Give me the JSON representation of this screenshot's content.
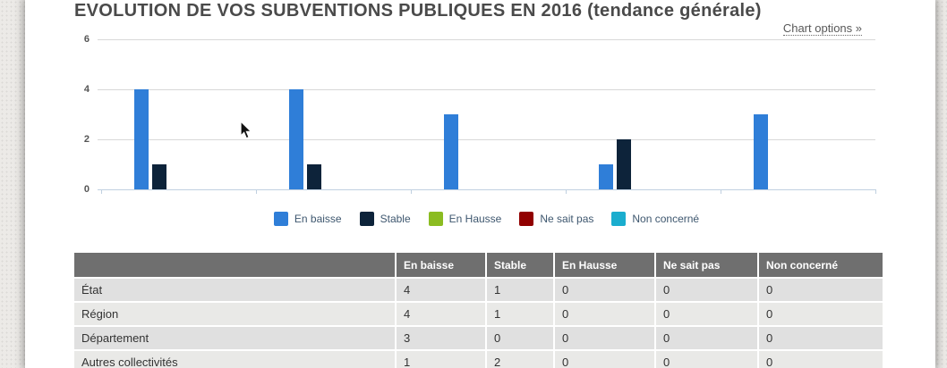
{
  "header": {
    "title": "EVOLUTION DE VOS SUBVENTIONS PUBLIQUES EN 2016 (tendance générale)",
    "chart_options_label": "Chart options »"
  },
  "chart_data": {
    "type": "bar",
    "title": "EVOLUTION DE VOS SUBVENTIONS PUBLIQUES EN 2016 (tendance générale)",
    "categories": [
      "État",
      "Région",
      "Département",
      "Autres collectivités",
      ""
    ],
    "series": [
      {
        "name": "En baisse",
        "color": "#2f7ed8",
        "values": [
          4,
          4,
          3,
          1,
          3
        ]
      },
      {
        "name": "Stable",
        "color": "#0d233a",
        "values": [
          1,
          1,
          0,
          2,
          0
        ]
      },
      {
        "name": "En Hausse",
        "color": "#8bbc21",
        "values": [
          0,
          0,
          0,
          0,
          0
        ]
      },
      {
        "name": "Ne sait pas",
        "color": "#910000",
        "values": [
          0,
          0,
          0,
          0,
          0
        ]
      },
      {
        "name": "Non concerné",
        "color": "#1aadce",
        "values": [
          0,
          0,
          0,
          0,
          0
        ]
      }
    ],
    "xlabel": "",
    "ylabel": "",
    "ylim": [
      0,
      6
    ],
    "yticks": [
      0,
      2,
      4,
      6
    ],
    "grid": true,
    "legend_position": "bottom"
  },
  "table": {
    "columns": [
      "",
      "En baisse",
      "Stable",
      "En Hausse",
      "Ne sait pas",
      "Non concerné"
    ],
    "rows": [
      {
        "label": "État",
        "values": [
          4,
          1,
          0,
          0,
          0
        ]
      },
      {
        "label": "Région",
        "values": [
          4,
          1,
          0,
          0,
          0
        ]
      },
      {
        "label": "Département",
        "values": [
          3,
          0,
          0,
          0,
          0
        ]
      },
      {
        "label": "Autres collectivités",
        "values": [
          1,
          2,
          0,
          0,
          0
        ]
      }
    ]
  },
  "colors": {
    "table_header_bg": "#6f6f6f",
    "grid_line": "#d8d8d8",
    "axis_line": "#c0d0e0",
    "legend_text": "#3e576f"
  }
}
